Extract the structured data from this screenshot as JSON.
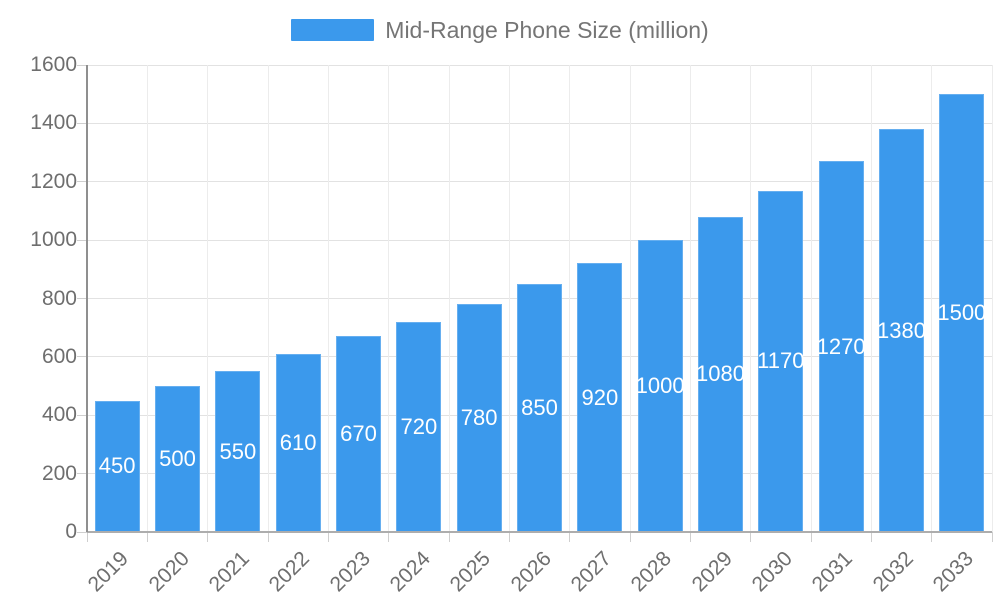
{
  "chart_data": {
    "type": "bar",
    "title": "",
    "legend": "Mid-Range Phone Size (million)",
    "legend_position": "top",
    "categories": [
      "2019",
      "2020",
      "2021",
      "2022",
      "2023",
      "2024",
      "2025",
      "2026",
      "2027",
      "2028",
      "2029",
      "2030",
      "2031",
      "2032",
      "2033"
    ],
    "values": [
      450,
      500,
      550,
      610,
      670,
      720,
      780,
      850,
      920,
      1000,
      1080,
      1170,
      1270,
      1380,
      1500
    ],
    "xlabel": "",
    "ylabel": "",
    "ylim": [
      0,
      1600
    ],
    "ytick_step": 200,
    "ytick_labels": [
      "0",
      "200",
      "400",
      "600",
      "800",
      "1000",
      "1200",
      "1400",
      "1600"
    ],
    "grid": true,
    "bar_label_position": "inside-center",
    "x_label_rotation_deg": -45
  },
  "colors": {
    "bar_fill": "#3b99ec",
    "bar_value_label": "#ffffff",
    "axis_text": "#6e6e6e",
    "legend_text": "#757575",
    "gridline": "#e2e2e2",
    "axis_line": "#8f8f8f"
  }
}
